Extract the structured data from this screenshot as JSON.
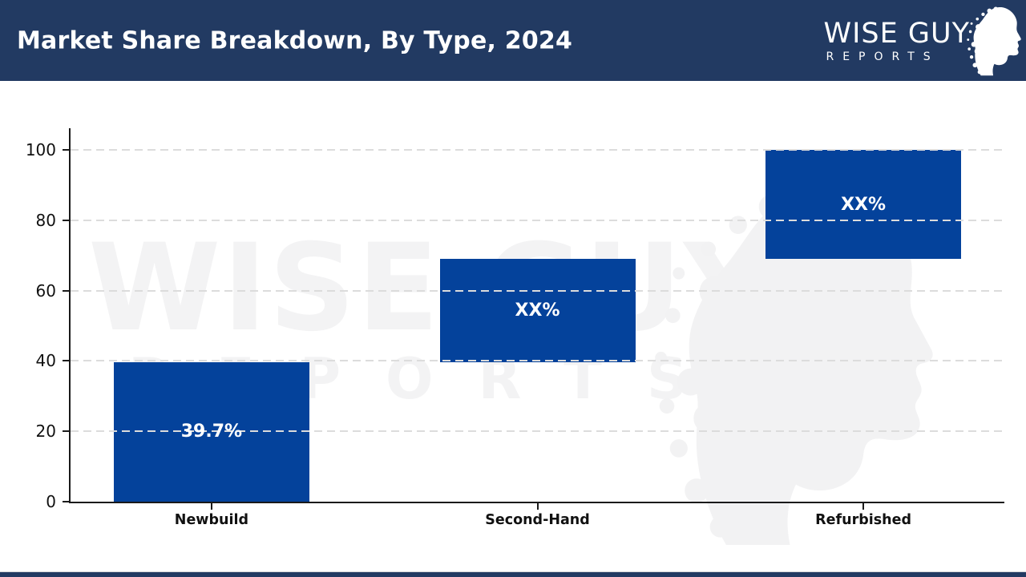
{
  "header": {
    "title": "Market Share Breakdown, By Type, 2024",
    "logo_line1": "WISE GUY",
    "logo_line2": "REPORTS"
  },
  "watermark": {
    "line1": "WISE GUY",
    "line2": "REPORTS"
  },
  "colors": {
    "header_bg": "#223A62",
    "bar_blue": "#04429B",
    "bar_label": "#ffffff",
    "axis": "#1a1a1a",
    "gridline": "#dcdcdc",
    "watermark": "#f3f3f4"
  },
  "chart_data": {
    "type": "bar",
    "subtype": "floating-segment",
    "title": "Market Share Breakdown, By Type, 2024",
    "xlabel": "",
    "ylabel": "",
    "categories": [
      "Newbuild",
      "Second-Hand",
      "Refurbished"
    ],
    "bars": [
      {
        "category": "Newbuild",
        "start": 0,
        "end": 39.7,
        "label": "39.7%"
      },
      {
        "category": "Second-Hand",
        "start": 39.7,
        "end": 69,
        "label": "XX%"
      },
      {
        "category": "Refurbished",
        "start": 69,
        "end": 100,
        "label": "XX%"
      }
    ],
    "ylim": [
      0,
      100
    ],
    "yticks": [
      0,
      20,
      40,
      60,
      80,
      100
    ],
    "grid": "horizontal-dashed",
    "legend": "none"
  }
}
